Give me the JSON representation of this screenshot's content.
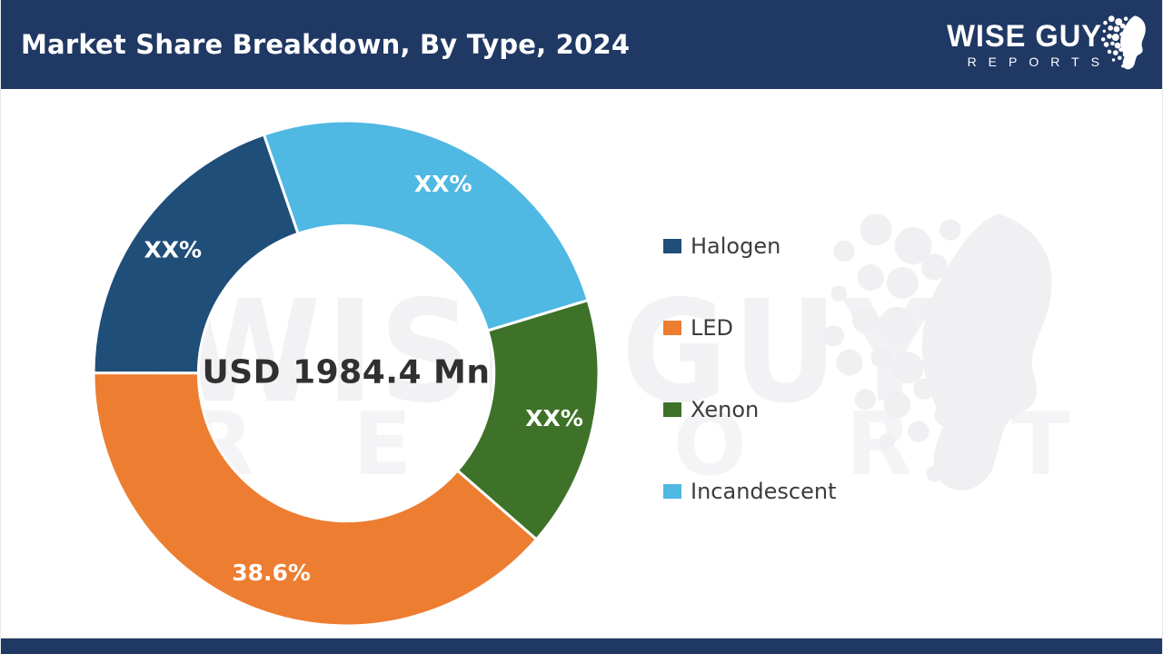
{
  "header": {
    "title": "Market Share Breakdown, By Type, 2024",
    "logo": {
      "wordmark": "WISE GUY",
      "subtitle": "REPORTS"
    }
  },
  "watermark": {
    "line1": "WISE GUY",
    "line2": "R E P O R T S"
  },
  "chart_data": {
    "type": "pie",
    "subtype": "donut",
    "title": "Market Share Breakdown, By Type, 2024",
    "center_label": "USD 1984.4 Mn",
    "categories": [
      "Halogen",
      "LED",
      "Xenon",
      "Incandescent"
    ],
    "values": [
      19.7,
      38.6,
      16.1,
      25.6
    ],
    "slice_labels": [
      "XX%",
      "38.6%",
      "XX%",
      "XX%"
    ],
    "colors": [
      "#1f4e79",
      "#ed7d31",
      "#3e7228",
      "#4fb8e3"
    ],
    "start_angle_deg": 109,
    "direction": "counterclockwise",
    "inner_radius_ratio": 0.585,
    "legend_position": "right"
  }
}
